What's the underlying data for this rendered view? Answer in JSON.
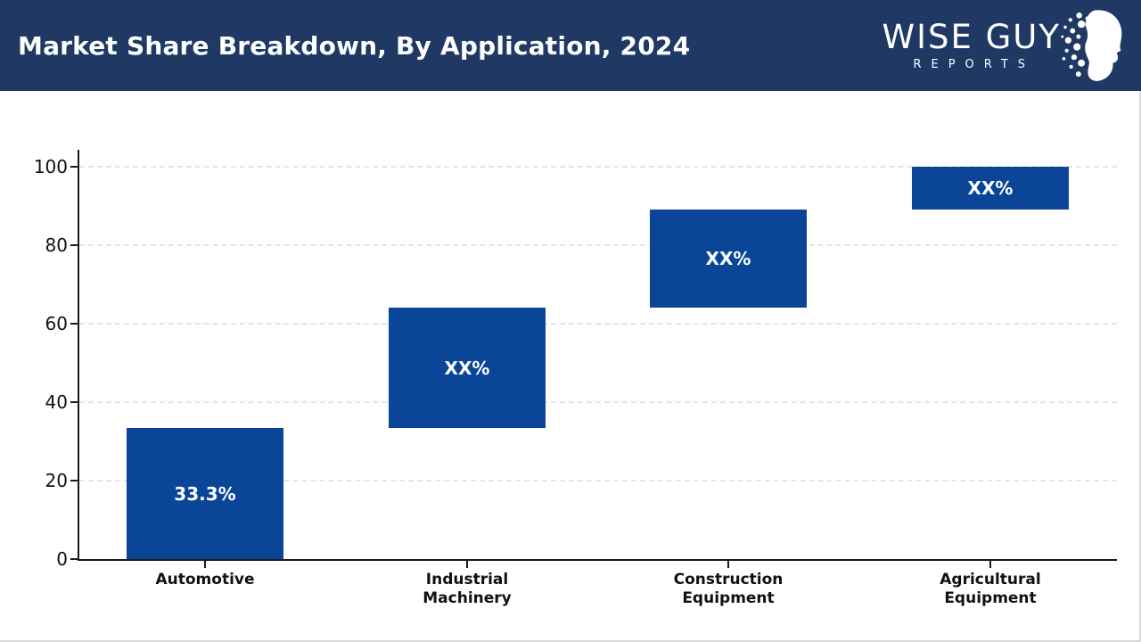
{
  "header": {
    "title": "Market Share Breakdown, By Application, 2024",
    "logo": {
      "line1": "WISE GUY",
      "line2": "REPORTS"
    }
  },
  "watermark": {
    "line1": "WISE GUY",
    "line2": "REPORTS"
  },
  "chart_data": {
    "type": "bar",
    "variant": "waterfall-stacked-steps",
    "title": "Market Share Breakdown, By Application, 2024",
    "categories": [
      "Automotive",
      "Industrial\nMachinery",
      "Construction\nEquipment",
      "Agricultural\nEquipment"
    ],
    "segments": [
      {
        "category": "Automotive",
        "start": 0,
        "end": 33.3,
        "label": "33.3%"
      },
      {
        "category": "Industrial Machinery",
        "start": 33.3,
        "end": 64,
        "label": "XX%"
      },
      {
        "category": "Construction Equipment",
        "start": 64,
        "end": 89,
        "label": "XX%"
      },
      {
        "category": "Agricultural Equipment",
        "start": 89,
        "end": 100,
        "label": "XX%"
      }
    ],
    "yticks": [
      0,
      20,
      40,
      60,
      80,
      100
    ],
    "ylim": [
      0,
      104
    ],
    "xlabel": "",
    "ylabel": "",
    "legend": "none",
    "grid": "horizontal-dashed",
    "bar_color": "#0a4597",
    "label_color": "#ffffff"
  },
  "colors": {
    "header_bg": "#1f3864",
    "bar": "#0a4597",
    "grid": "#e4e4e4",
    "axis": "#1a1a1a",
    "edge_line": "#d9d9d9"
  }
}
